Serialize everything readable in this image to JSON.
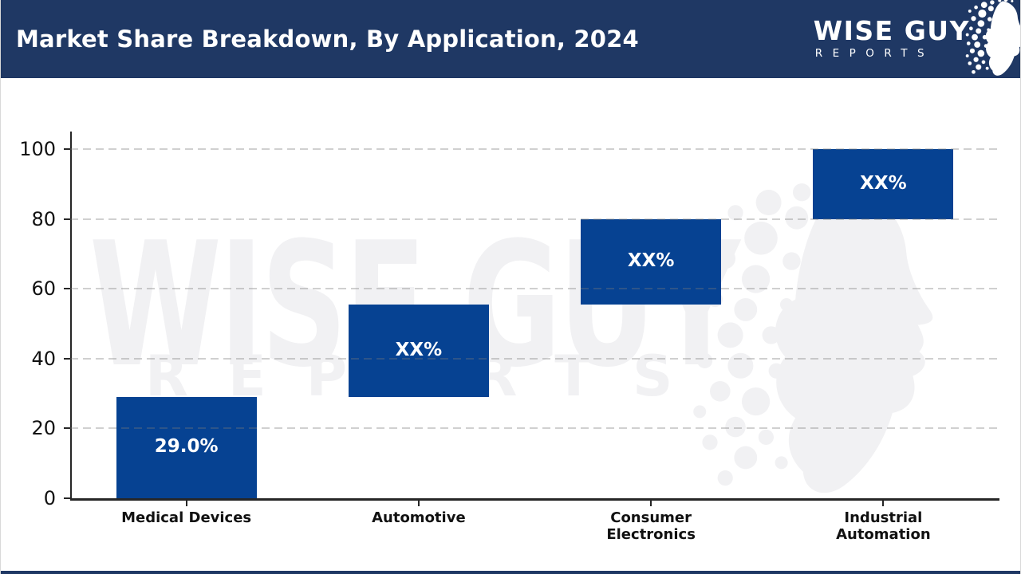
{
  "header": {
    "title": "Market Share Breakdown, By Application, 2024",
    "logo": {
      "primary": "WISE GUY",
      "secondary": "REPORTS"
    }
  },
  "watermark": {
    "primary": "WISE GUY",
    "secondary": "REPORTS"
  },
  "colors": {
    "header_bg": "#1f3864",
    "bar_blue": "#064292",
    "axis": "#262626",
    "grid": "#d9d9d9",
    "watermark_gray": "#f1f1f3"
  },
  "chart_data": {
    "type": "bar",
    "subtype": "waterfall",
    "title": "Market Share Breakdown, By Application, 2024",
    "xlabel": "",
    "ylabel": "",
    "ylim": [
      0,
      105
    ],
    "yticks": [
      0,
      20,
      40,
      60,
      80,
      100
    ],
    "grid": true,
    "grid_style": "dashed",
    "legend": false,
    "categories": [
      "Medical Devices",
      "Automotive",
      "Consumer\nElectronics",
      "Industrial\nAutomation"
    ],
    "bars": [
      {
        "label": "Medical Devices",
        "start": 0,
        "end": 29,
        "value_label": "29.0%"
      },
      {
        "label": "Automotive",
        "start": 29,
        "end": 55.5,
        "value_label": "XX%"
      },
      {
        "label": "Consumer\nElectronics",
        "start": 55.5,
        "end": 80,
        "value_label": "XX%"
      },
      {
        "label": "Industrial\nAutomation",
        "start": 80,
        "end": 100,
        "value_label": "XX%"
      }
    ]
  }
}
